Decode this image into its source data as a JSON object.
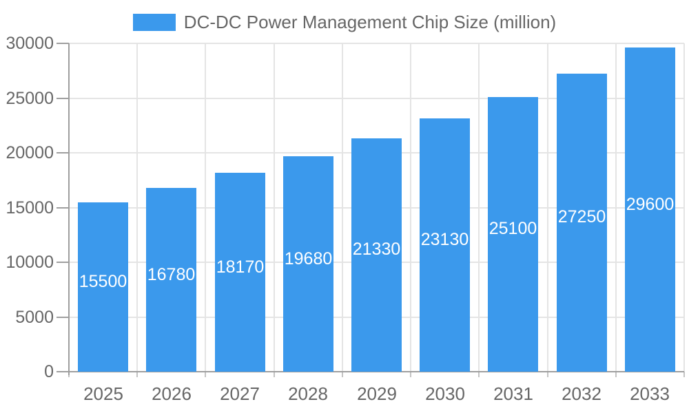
{
  "legend": {
    "label": "DC-DC Power Management Chip Size (million)"
  },
  "chart_data": {
    "type": "bar",
    "title": "",
    "xlabel": "",
    "ylabel": "",
    "categories": [
      "2025",
      "2026",
      "2027",
      "2028",
      "2029",
      "2030",
      "2031",
      "2032",
      "2033"
    ],
    "series": [
      {
        "name": "DC-DC Power Management Chip Size (million)",
        "values": [
          15500,
          16780,
          18170,
          19680,
          21330,
          23130,
          25100,
          27250,
          29600
        ]
      }
    ],
    "value_labels": [
      "15500",
      "16780",
      "18170",
      "19680",
      "21330",
      "23130",
      "25100",
      "27250",
      "29600"
    ],
    "ylim": [
      0,
      30000
    ],
    "yticks": [
      0,
      5000,
      10000,
      15000,
      20000,
      25000,
      30000
    ],
    "grid": true,
    "legend_position": "top-center",
    "colors": {
      "bar": "#3B99EC",
      "value_label": "#ffffff",
      "axis_text": "#666666",
      "gridline": "#e4e4e4",
      "axis_line": "#9e9e9e",
      "x_tick": "#c4c4c4"
    }
  }
}
